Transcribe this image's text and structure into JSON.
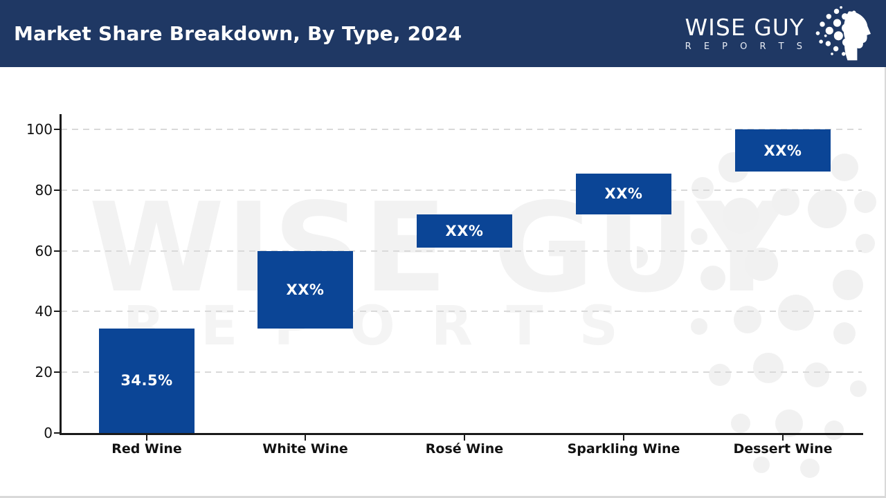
{
  "header": {
    "title": "Market Share Breakdown, By Type, 2024",
    "brand": {
      "name_top": "WISE GUY",
      "name_bottom": "R E P O R T S"
    }
  },
  "watermark": {
    "line1": "WISE GUY",
    "line2": "REPORTS"
  },
  "colors": {
    "header_bg": "#1f3864",
    "bar_blue": "#0b4596",
    "gridline": "#d9d9d9",
    "bar_label": "#ffffff"
  },
  "chart_data": {
    "type": "bar",
    "subtype": "waterfall",
    "title": "Market Share Breakdown, By Type, 2024",
    "xlabel": "",
    "ylabel": "",
    "ylim": [
      0,
      100
    ],
    "yticks": [
      0,
      20,
      40,
      60,
      80,
      100
    ],
    "grid": "horizontal-dashed",
    "legend": "none",
    "categories": [
      "Red Wine",
      "White Wine",
      "Rosé Wine",
      "Sparkling Wine",
      "Dessert Wine"
    ],
    "segments": [
      {
        "category": "Red Wine",
        "start": 0,
        "end": 34.5,
        "label": "34.5%"
      },
      {
        "category": "White Wine",
        "start": 34.5,
        "end": 60,
        "label": "XX%"
      },
      {
        "category": "Rosé Wine",
        "start": 61,
        "end": 72,
        "label": "XX%"
      },
      {
        "category": "Sparkling Wine",
        "start": 72,
        "end": 85.5,
        "label": "XX%"
      },
      {
        "category": "Dessert Wine",
        "start": 86,
        "end": 100,
        "label": "XX%"
      }
    ]
  }
}
